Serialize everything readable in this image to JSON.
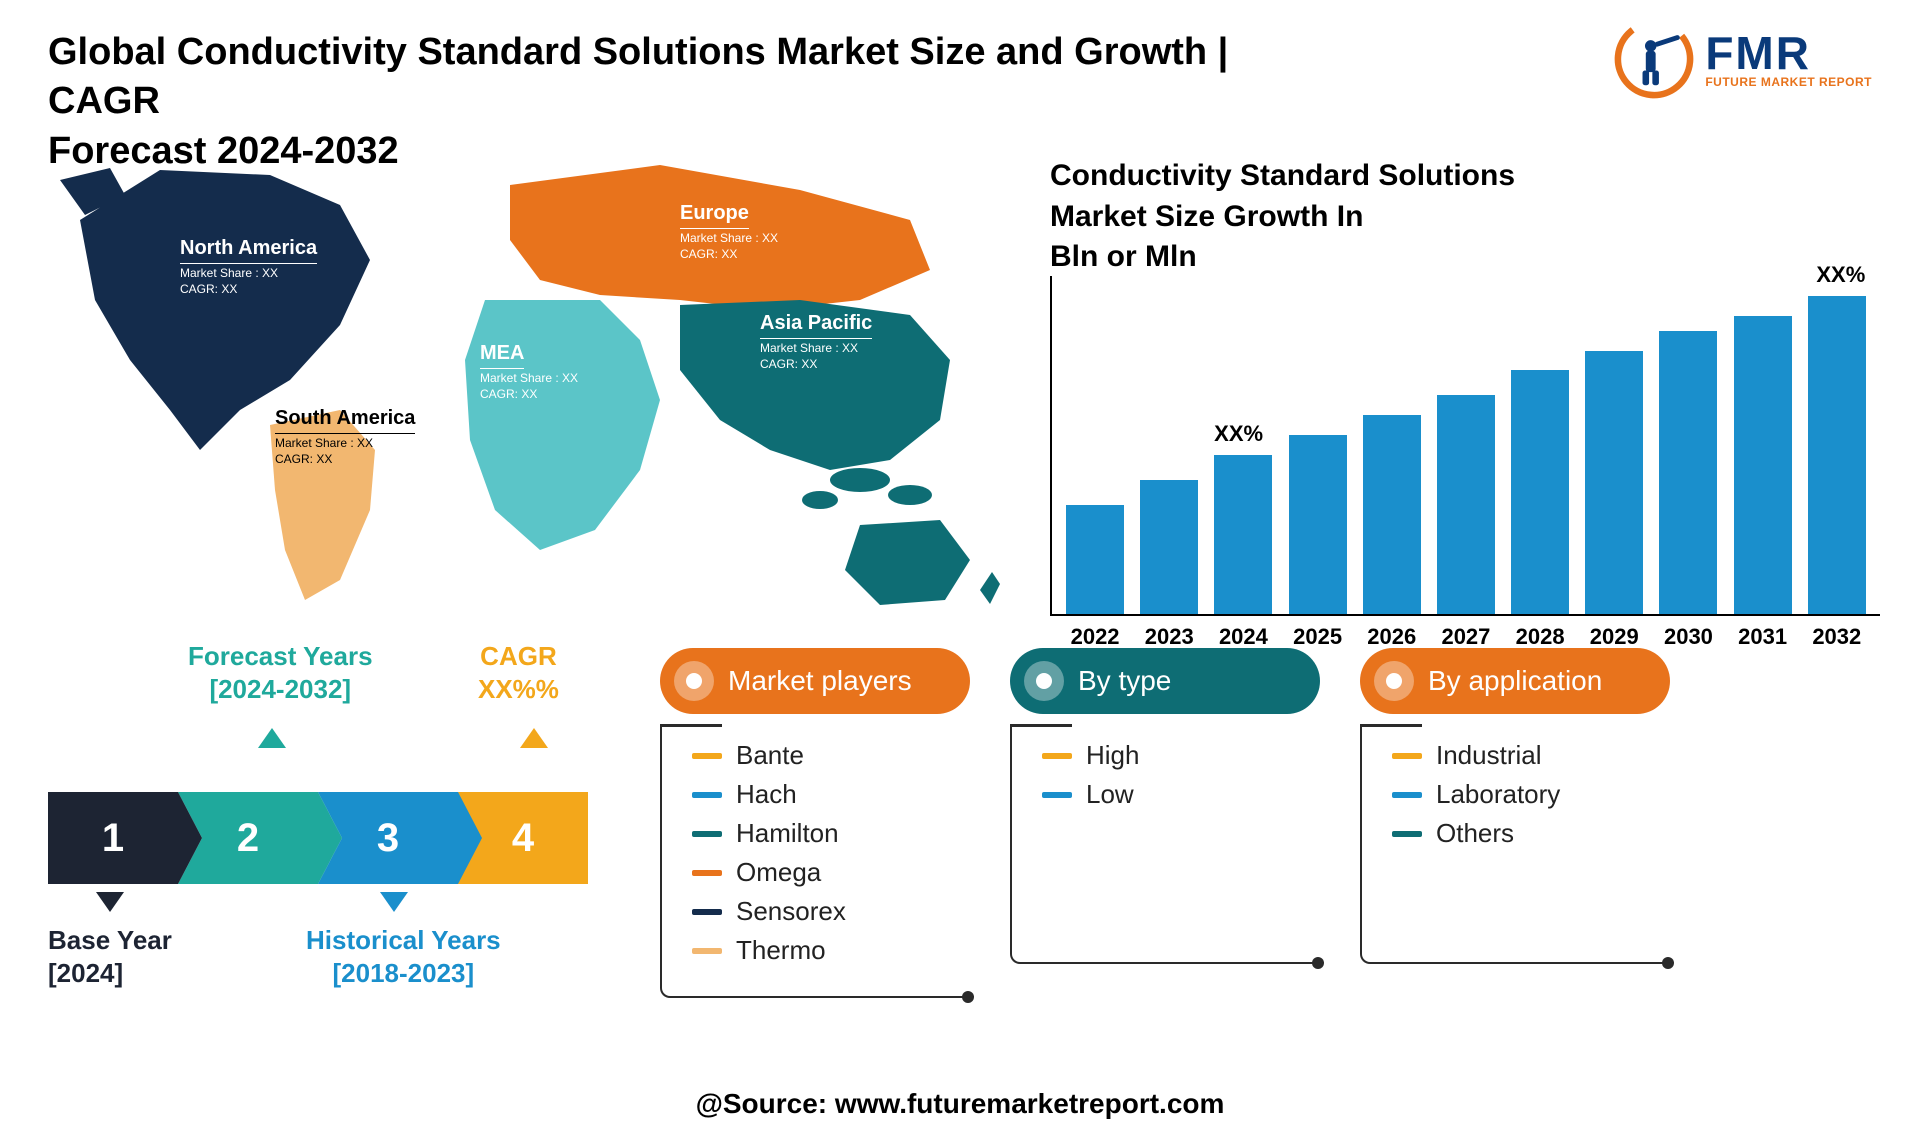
{
  "title": {
    "line1": "Global Conductivity Standard Solutions  Market Size and Growth | CAGR",
    "line2": "Forecast 2024-2032"
  },
  "logo": {
    "fmr": "FMR",
    "sub": "FUTURE MARKET REPORT",
    "ring_color": "#e8731c",
    "fmr_color": "#0a3a7a"
  },
  "map": {
    "regions": [
      {
        "id": "north-america",
        "name": "North America",
        "share": "Market Share : XX",
        "cagr": "CAGR: XX",
        "color": "#14ried"
      },
      {
        "id": "south-america",
        "name": "South America",
        "share": "Market Share : XX",
        "cagr": "CAGR: XX"
      },
      {
        "id": "europe",
        "name": "Europe",
        "share": "Market Share : XX",
        "cagr": "CAGR: XX"
      },
      {
        "id": "mea",
        "name": "MEA",
        "share": "Market Share : XX",
        "cagr": "CAGR: XX"
      },
      {
        "id": "asia-pacific",
        "name": "Asia Pacific",
        "share": "Market Share : XX",
        "cagr": "CAGR: XX"
      }
    ],
    "colors": {
      "north_america": "#142c4c",
      "south_america": "#f2b770",
      "europe": "#e8731c",
      "mea": "#5bc5c8",
      "asia_pacific": "#0e6d74",
      "australia": "#0e6d74"
    }
  },
  "chart": {
    "title_l1": "Conductivity Standard Solutions",
    "title_l2": "Market Size Growth In",
    "title_l3": "Bln or Mln",
    "type": "bar",
    "categories": [
      "2022",
      "2023",
      "2024",
      "2025",
      "2026",
      "2027",
      "2028",
      "2029",
      "2030",
      "2031",
      "2032"
    ],
    "values": [
      110,
      135,
      160,
      180,
      200,
      220,
      245,
      265,
      285,
      300,
      320
    ],
    "ymax": 340,
    "bar_color": "#1a8fcc",
    "axis_color": "#000000",
    "label_fontsize": 22,
    "pct_first": {
      "text": "XX%",
      "index": 2
    },
    "pct_last": {
      "text": "XX%",
      "index": 10
    }
  },
  "timeline": {
    "forecast": {
      "label": "Forecast Years",
      "range": "[2024-2032]",
      "color": "#1fa99c"
    },
    "cagr": {
      "label": "CAGR",
      "value": "XX%%",
      "color": "#f3a71b"
    },
    "base": {
      "label": "Base Year",
      "range": "[2024]",
      "color": "#1d2433"
    },
    "historical": {
      "label": "Historical Years",
      "range": "[2018-2023]",
      "color": "#1a8fcc"
    },
    "steps": [
      {
        "num": "1",
        "color": "#1d2433"
      },
      {
        "num": "2",
        "color": "#1fa99c"
      },
      {
        "num": "3",
        "color": "#1a8fcc"
      },
      {
        "num": "4",
        "color": "#f3a71b"
      }
    ]
  },
  "categories": {
    "market_players": {
      "title": "Market players",
      "pill_color": "#e8731c",
      "items": [
        {
          "label": "Bante",
          "color": "#f3a71b"
        },
        {
          "label": "Hach",
          "color": "#1a8fcc"
        },
        {
          "label": "Hamilton",
          "color": "#0e6d74"
        },
        {
          "label": "Omega",
          "color": "#e8731c"
        },
        {
          "label": "Sensorex",
          "color": "#142c4c"
        },
        {
          "label": "Thermo",
          "color": "#f2b770"
        }
      ]
    },
    "by_type": {
      "title": "By type",
      "pill_color": "#0e6d74",
      "items": [
        {
          "label": "High",
          "color": "#f3a71b"
        },
        {
          "label": "Low",
          "color": "#1a8fcc"
        }
      ]
    },
    "by_application": {
      "title": "By application",
      "pill_color": "#e8731c",
      "items": [
        {
          "label": "Industrial",
          "color": "#f3a71b"
        },
        {
          "label": "Laboratory",
          "color": "#1a8fcc"
        },
        {
          "label": "Others",
          "color": "#0e6d74"
        }
      ]
    }
  },
  "source": "@Source: www.futuremarketreport.com"
}
